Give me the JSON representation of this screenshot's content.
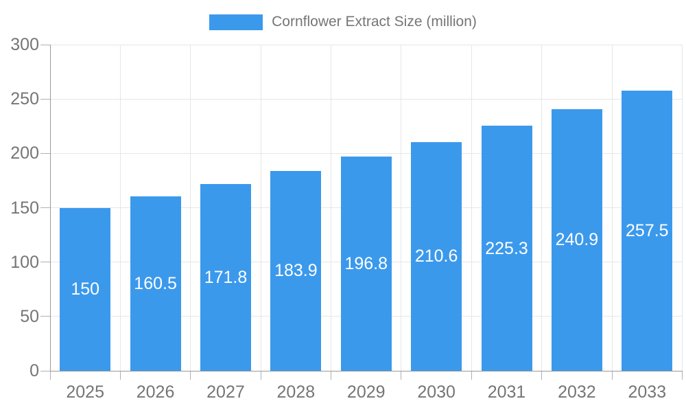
{
  "chart_data": {
    "type": "bar",
    "title": "",
    "legend_label": "Cornflower Extract Size (million)",
    "legend_position": "top-center",
    "categories": [
      "2025",
      "2026",
      "2027",
      "2028",
      "2029",
      "2030",
      "2031",
      "2032",
      "2033"
    ],
    "values": [
      150,
      160.5,
      171.8,
      183.9,
      196.8,
      210.6,
      225.3,
      240.9,
      257.5
    ],
    "xlabel": "",
    "ylabel": "",
    "ylim": [
      0,
      300
    ],
    "ytick_step": 50,
    "ytick_labels": [
      "0",
      "50",
      "100",
      "150",
      "200",
      "250",
      "300"
    ],
    "grid": true,
    "colors": {
      "bar": "#3B99EC",
      "axis_line": "#999999",
      "tick": "#b0b0b0",
      "gridline": "#e6e6e6",
      "axis_text": "#757575",
      "bar_label_text": "#ffffff",
      "background": "#ffffff"
    }
  }
}
